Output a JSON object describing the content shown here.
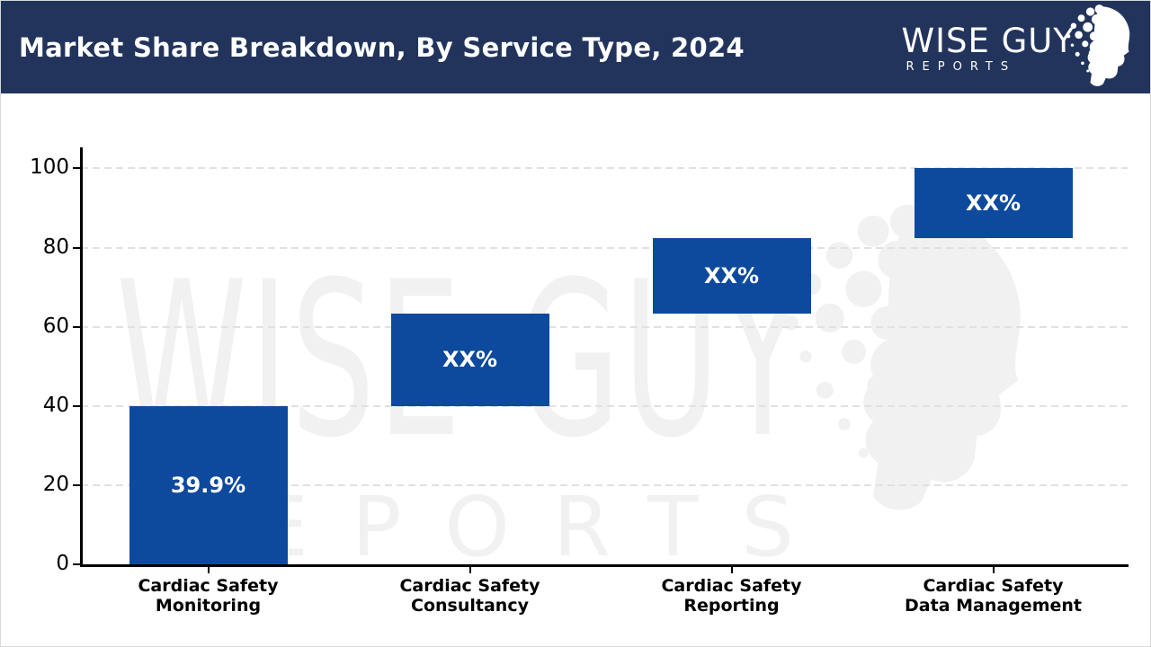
{
  "header": {
    "title": "Market Share Breakdown, By Service Type, 2024",
    "logo": {
      "line1": "WISE GUY",
      "line2": "REPORTS"
    }
  },
  "watermark": {
    "line1": "WISE GUY",
    "line2": "REPORTS"
  },
  "icons": {
    "header_logo_face": "dotted-head-profile-icon",
    "watermark_face": "dotted-head-profile-icon"
  },
  "chart_data": {
    "type": "bar",
    "subtype": "floating-waterfall",
    "title": "Market Share Breakdown, By Service Type, 2024",
    "categories": [
      {
        "line1": "Cardiac Safety",
        "line2": "Monitoring"
      },
      {
        "line1": "Cardiac Safety",
        "line2": "Consultancy"
      },
      {
        "line1": "Cardiac Safety",
        "line2": "Reporting"
      },
      {
        "line1": "Cardiac Safety",
        "line2": "Data Management"
      }
    ],
    "segments": [
      {
        "label": "39.9%",
        "start": 0,
        "end": 39.9,
        "value_hidden": false
      },
      {
        "label": "XX%",
        "start": 39.9,
        "end": 63.4,
        "value_hidden": true
      },
      {
        "label": "XX%",
        "start": 63.4,
        "end": 82.4,
        "value_hidden": true
      },
      {
        "label": "XX%",
        "start": 82.4,
        "end": 100,
        "value_hidden": true
      }
    ],
    "yticks": [
      0,
      20,
      40,
      60,
      80,
      100
    ],
    "ylim": [
      0,
      105
    ],
    "grid": "horizontal-dashed",
    "legend": "none"
  },
  "colors": {
    "header_bg": "#22345c",
    "bar": "#0d4a9e",
    "bar_label": "#ffffff",
    "gridline": "#e1e1e1",
    "axis": "#000000",
    "watermark": "#f1f1f2",
    "frame_border": "#d9d9d9"
  }
}
